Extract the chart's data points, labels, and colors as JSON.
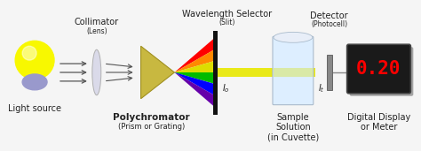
{
  "bg_color": "#ffffff",
  "text_color": "#222222",
  "arrow_color": "#555555",
  "display_bg": "#1a1a1a",
  "display_text_color": "#ff0000",
  "display_value": "0.20",
  "labels": {
    "light_source": "Light source",
    "collimator": "Collimator",
    "collimator_sub": "(Lens)",
    "polychromator": "Polychromator",
    "polychromator_sub": "(Prism or Grating)",
    "wavelength_selector": "Wavelength Selector",
    "wavelength_selector_sub": "(Slit)",
    "sample": "Sample\nSolution\n(in Cuvette)",
    "detector": "Detector",
    "detector_sub": "(Photocell)",
    "display": "Digital Display\nor Meter"
  },
  "bulb_circle_color": "#f8f800",
  "bulb_base_color": "#9999cc",
  "lens_color": "#d8d8e8",
  "prism_color": "#c8b840",
  "prism_edge_color": "#a09020",
  "spectrum_colors": [
    "#ff0000",
    "#ff8800",
    "#dddd00",
    "#00bb00",
    "#0000ff",
    "#6600aa"
  ],
  "slit_color": "#111111",
  "beam_color": "#e8e800",
  "cuvette_body_color": "#ddeeff",
  "cuvette_edge_color": "#aabbcc",
  "cuvette_beam_color": "#d8e890",
  "detector_color": "#888888",
  "detector_edge_color": "#666666",
  "connector_color": "#888888"
}
